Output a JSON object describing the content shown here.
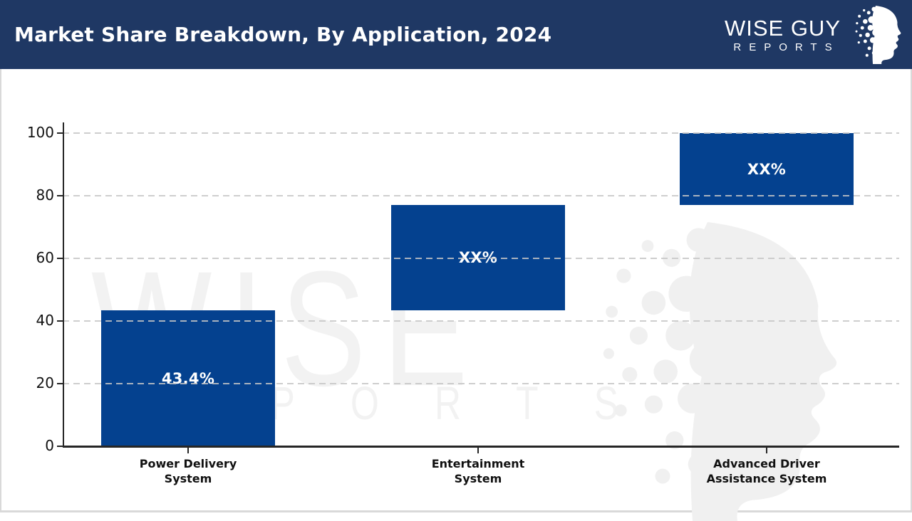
{
  "header": {
    "title": "Market Share Breakdown, By Application, 2024",
    "logo": {
      "line1": "WISE GUY",
      "line2": "REPORTS"
    }
  },
  "watermark": {
    "row1": "WISE",
    "row2": "REPORTS"
  },
  "chart_data": {
    "type": "bar",
    "subtype": "waterfall",
    "title": "Market Share Breakdown, By Application, 2024",
    "categories": [
      "Power Delivery System",
      "Entertainment System",
      "Advanced Driver Assistance System"
    ],
    "category_label_lines": [
      [
        "Power Delivery",
        "System"
      ],
      [
        "Entertainment",
        "System"
      ],
      [
        "Advanced Driver",
        "Assistance System"
      ]
    ],
    "segments": [
      {
        "category": "Power Delivery System",
        "start": 0,
        "end": 43.4,
        "value_label": "43.4%"
      },
      {
        "category": "Entertainment System",
        "start": 43.4,
        "end": 77.0,
        "value_label": "XX%"
      },
      {
        "category": "Advanced Driver Assistance System",
        "start": 77.0,
        "end": 100.0,
        "value_label": "XX%"
      }
    ],
    "ylim": [
      0,
      100
    ],
    "yticks": [
      0,
      20,
      40,
      60,
      80,
      100
    ],
    "xlabel": "",
    "ylabel": "",
    "grid": "horizontal-dashed",
    "legend": "none",
    "bar_color": "#04418f",
    "bar_label_color": "#ffffff"
  },
  "colors": {
    "header_bg": "#1f3864",
    "bar": "#04418f",
    "axis": "#262626",
    "gridline": "#c6c6c6",
    "watermark": "#f2f2f2",
    "frame_border": "#d9d9d9",
    "text": "#111111"
  }
}
